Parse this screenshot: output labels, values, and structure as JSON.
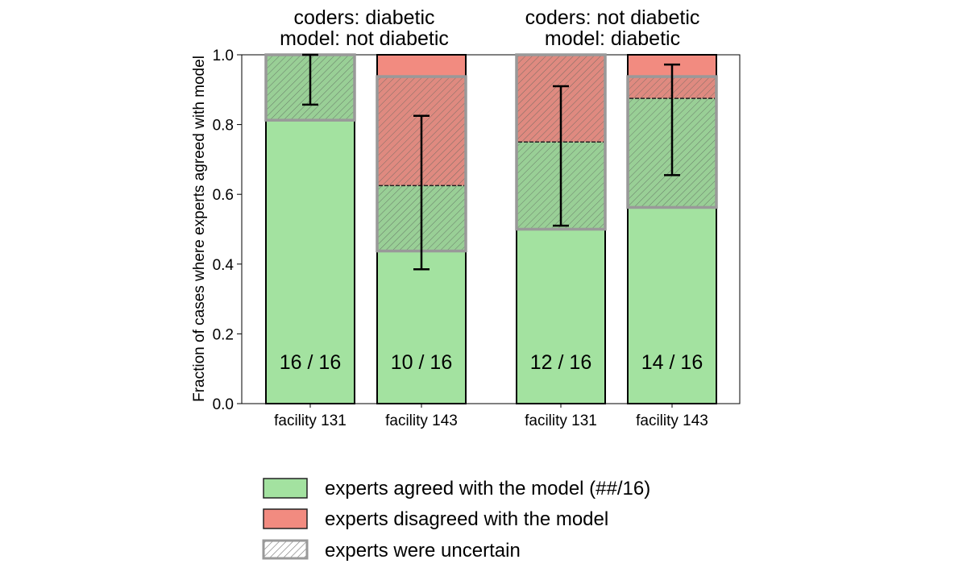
{
  "chart_data": {
    "type": "bar",
    "stacked": true,
    "ylabel": "Fraction of cases where experts agreed with model",
    "xlabel": "",
    "ylim": [
      0.0,
      1.0
    ],
    "yticks": [
      "0.0",
      "0.2",
      "0.4",
      "0.6",
      "0.8",
      "1.0"
    ],
    "ytick_values": [
      0.0,
      0.2,
      0.4,
      0.6,
      0.8,
      1.0
    ],
    "grid": false,
    "groups": [
      {
        "title_line1": "coders: diabetic",
        "title_line2": "model: not diabetic"
      },
      {
        "title_line1": "coders: not diabetic",
        "title_line2": "model: diabetic"
      }
    ],
    "categories": [
      "facility 131",
      "facility 143",
      "facility 131",
      "facility 143"
    ],
    "category_group": [
      0,
      0,
      1,
      1
    ],
    "bars": [
      {
        "label": "facility 131",
        "agree": 0.8125,
        "uncertain_agree": 0.1875,
        "uncertain_disagree": 0.0,
        "disagree": 0.0,
        "count_text": "16 / 16",
        "err_low": 0.857,
        "err_high": 1.0
      },
      {
        "label": "facility 143",
        "agree": 0.4375,
        "uncertain_agree": 0.1875,
        "uncertain_disagree": 0.3125,
        "disagree": 0.0625,
        "count_text": "10 / 16",
        "err_low": 0.385,
        "err_high": 0.825
      },
      {
        "label": "facility 131",
        "agree": 0.5,
        "uncertain_agree": 0.25,
        "uncertain_disagree": 0.25,
        "disagree": 0.0,
        "count_text": "12 / 16",
        "err_low": 0.51,
        "err_high": 0.91
      },
      {
        "label": "facility 143",
        "agree": 0.5625,
        "uncertain_agree": 0.3125,
        "uncertain_disagree": 0.0625,
        "disagree": 0.0625,
        "count_text": "14 / 16",
        "err_low": 0.655,
        "err_high": 0.972
      }
    ],
    "legend": {
      "placement": "bottom-center",
      "entries": [
        {
          "label": "experts agreed with the model (##/16)",
          "kind": "agree"
        },
        {
          "label": "experts disagreed with the model",
          "kind": "disagree"
        },
        {
          "label": "experts were uncertain",
          "kind": "uncertain"
        }
      ]
    },
    "colors": {
      "agree": "#a3e2a0",
      "agree_hatched": "#99cf96",
      "disagree": "#f28b80",
      "disagree_hatched": "#df8a80",
      "uncertain_border": "#999999",
      "hatch": "#6f7d6f",
      "edge": "#000000"
    }
  }
}
